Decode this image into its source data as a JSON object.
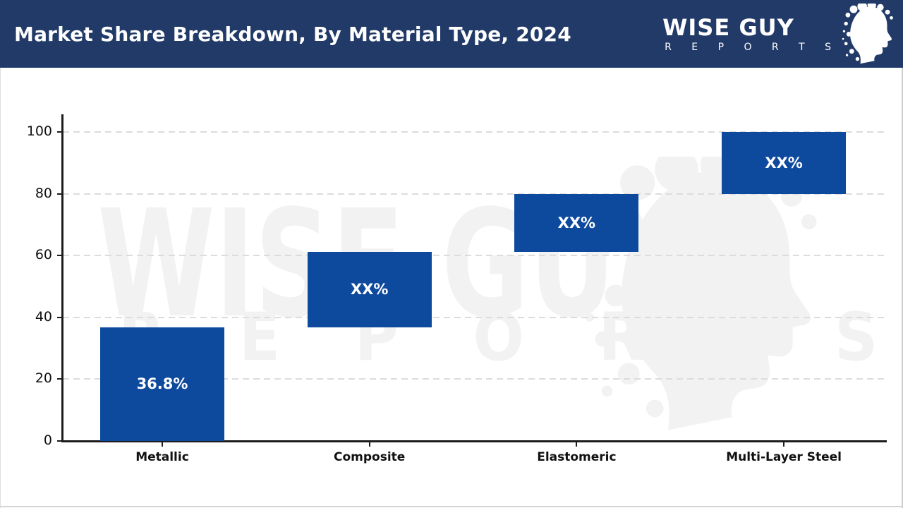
{
  "header": {
    "title": "Market Share Breakdown, By Material Type, 2024",
    "logo": {
      "brand_line1": "WISE GUY",
      "brand_line2": "R E P O R T S"
    }
  },
  "watermark": {
    "line1": "WISE GUY",
    "line2": "R E P O R T S"
  },
  "colors": {
    "header_bg": "#223a68",
    "bar": "#0d4a9e",
    "bar_label": "#ffffff",
    "grid": "#dcdcdc",
    "axis": "#1c1c1c",
    "watermark": "#f2f2f2"
  },
  "chart_data": {
    "type": "bar",
    "subtype": "waterfall",
    "title": "Market Share Breakdown, By Material Type, 2024",
    "categories": [
      "Metallic",
      "Composite",
      "Elastomeric",
      "Multi-Layer Steel"
    ],
    "segments": [
      {
        "start": 0,
        "end": 36.8
      },
      {
        "start": 36.8,
        "end": 61.2
      },
      {
        "start": 61.2,
        "end": 79.8
      },
      {
        "start": 79.8,
        "end": 100
      }
    ],
    "bar_labels": [
      "36.8%",
      "XX%",
      "XX%",
      "XX%"
    ],
    "values_note": "only first bar value disclosed; others masked as XX%",
    "yticks": [
      0,
      20,
      40,
      60,
      80,
      100
    ],
    "ylim": [
      0,
      106
    ],
    "xlabel": "",
    "ylabel": "",
    "grid": "dashed-horizontal",
    "legend": "none"
  }
}
